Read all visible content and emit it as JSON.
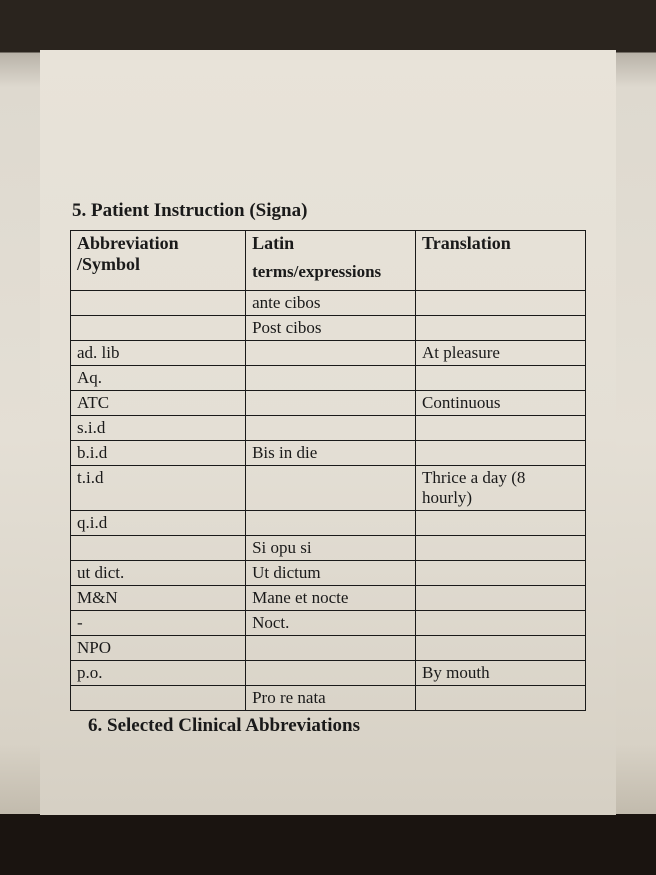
{
  "background_color": "#e4dfd5",
  "border_color": "#1a1a1a",
  "text_color": "#1a1a1a",
  "font_family": "Georgia, serif",
  "heading1": "5.  Patient Instruction (Signa)",
  "heading2": "6. Selected Clinical Abbreviations",
  "table": {
    "columns": [
      {
        "key": "abbr",
        "label": "Abbreviation /Symbol",
        "sub": ""
      },
      {
        "key": "latin",
        "label": "Latin",
        "sub": "terms/expressions"
      },
      {
        "key": "trans",
        "label": "Translation",
        "sub": ""
      }
    ],
    "rows": [
      {
        "abbr": "",
        "latin": "ante cibos",
        "trans": ""
      },
      {
        "abbr": "",
        "latin": "Post cibos",
        "trans": ""
      },
      {
        "abbr": "ad. lib",
        "latin": "",
        "trans": "At pleasure"
      },
      {
        "abbr": "Aq.",
        "latin": "",
        "trans": ""
      },
      {
        "abbr": "ATC",
        "latin": "",
        "trans": "Continuous"
      },
      {
        "abbr": "s.i.d",
        "latin": "",
        "trans": ""
      },
      {
        "abbr": "b.i.d",
        "latin": "Bis in die",
        "trans": ""
      },
      {
        "abbr": "t.i.d",
        "latin": "",
        "trans": "Thrice a day (8 hourly)"
      },
      {
        "abbr": "q.i.d",
        "latin": "",
        "trans": ""
      },
      {
        "abbr": "",
        "latin": "Si opu si",
        "trans": ""
      },
      {
        "abbr": "ut dict.",
        "latin": "Ut dictum",
        "trans": ""
      },
      {
        "abbr": "M&N",
        "latin": "Mane et nocte",
        "trans": ""
      },
      {
        "abbr": "-",
        "latin": "Noct.",
        "trans": ""
      },
      {
        "abbr": "NPO",
        "latin": "",
        "trans": ""
      },
      {
        "abbr": "p.o.",
        "latin": "",
        "trans": "By mouth"
      },
      {
        "abbr": "",
        "latin": "Pro re nata",
        "trans": ""
      }
    ]
  }
}
